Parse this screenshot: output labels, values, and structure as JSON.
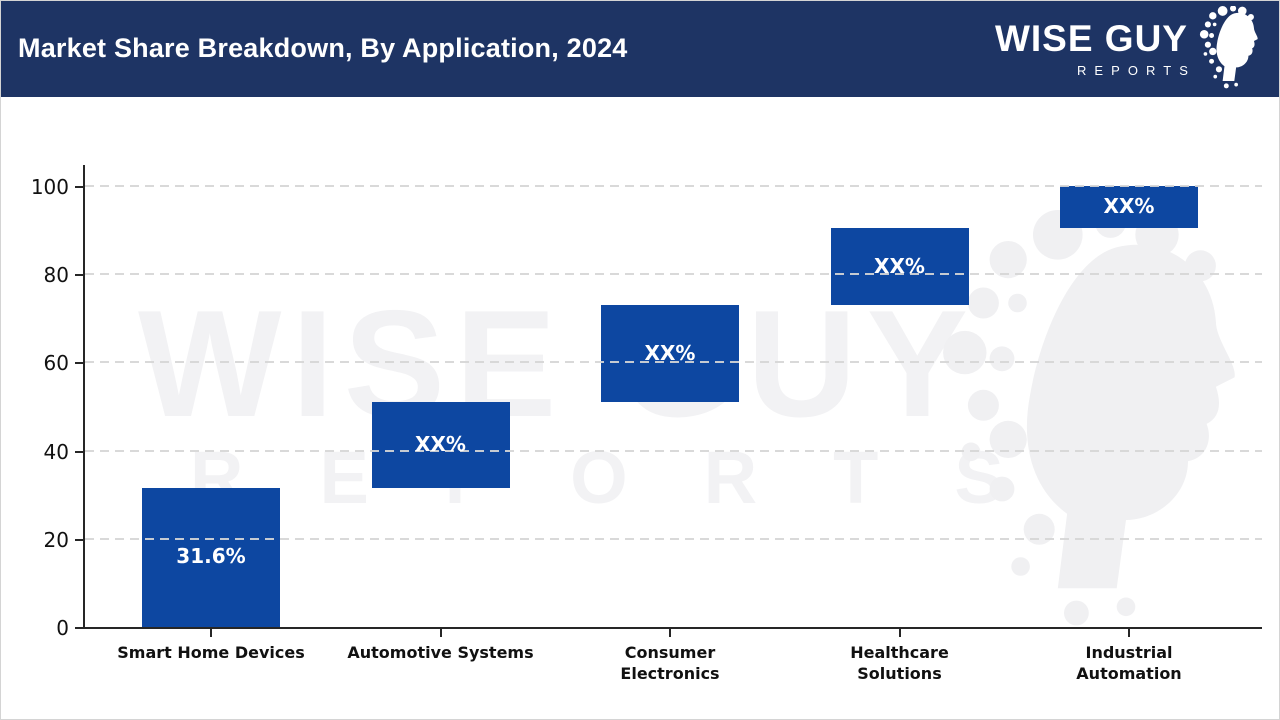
{
  "header": {
    "title": "Market Share Breakdown, By Application, 2024",
    "logo": {
      "line1": "WISE GUY",
      "line2": "REPORTS"
    }
  },
  "watermark": {
    "line1": "WISE GUY",
    "line2": "REPORTS"
  },
  "chart_data": {
    "type": "bar",
    "subtype": "waterfall",
    "title": "Market Share Breakdown, By Application, 2024",
    "xlabel": "",
    "ylabel": "",
    "ylim": [
      0,
      104.5
    ],
    "yticks": [
      0,
      20,
      40,
      60,
      80,
      100
    ],
    "grid": "dashed-horizontal",
    "legend": "none",
    "bar_color": "#0d47a1",
    "value_label_color": "#ffffff",
    "categories": [
      "Smart Home Devices",
      "Automotive Systems",
      "Consumer\nElectronics",
      "Healthcare\nSolutions",
      "Industrial\nAutomation"
    ],
    "segments": [
      {
        "category": "Smart Home Devices",
        "start": 0,
        "end": 31.6,
        "label": "31.6%"
      },
      {
        "category": "Automotive Systems",
        "start": 31.6,
        "end": 51.0,
        "label": "XX%"
      },
      {
        "category": "Consumer Electronics",
        "start": 51.0,
        "end": 73.0,
        "label": "XX%"
      },
      {
        "category": "Healthcare Solutions",
        "start": 73.0,
        "end": 90.4,
        "label": "XX%"
      },
      {
        "category": "Industrial Automation",
        "start": 90.4,
        "end": 100.0,
        "label": "XX%"
      }
    ]
  }
}
